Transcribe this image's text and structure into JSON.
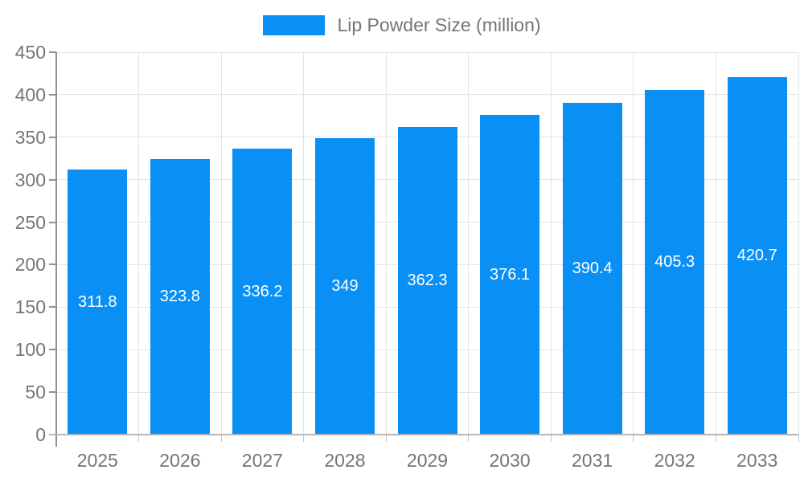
{
  "chart_data": {
    "type": "bar",
    "title": "Lip Powder Size (million)",
    "series": [
      {
        "name": "Lip Powder Size (million)",
        "values": [
          311.8,
          323.8,
          336.2,
          349,
          362.3,
          376.1,
          390.4,
          405.3,
          420.7
        ]
      }
    ],
    "categories": [
      "2025",
      "2026",
      "2027",
      "2028",
      "2029",
      "2030",
      "2031",
      "2032",
      "2033"
    ],
    "xlabel": "",
    "ylabel": "",
    "ylim": [
      0,
      450
    ],
    "yticks": [
      0,
      50,
      100,
      150,
      200,
      250,
      300,
      350,
      400,
      450
    ],
    "grid": true,
    "legend_position": "top-center",
    "bar_value_labels_visible": true,
    "colors": {
      "bar": "#0a90f5",
      "bar_value_label": "#ffffff",
      "axis_text": "#757575",
      "gridline": "#e4e4e4",
      "y_axis_line": "#919191",
      "x_axis_line": "#b5b5b5"
    }
  },
  "legend": {
    "label": "Lip Powder Size (million)",
    "swatch_color": "#0a90f5"
  }
}
